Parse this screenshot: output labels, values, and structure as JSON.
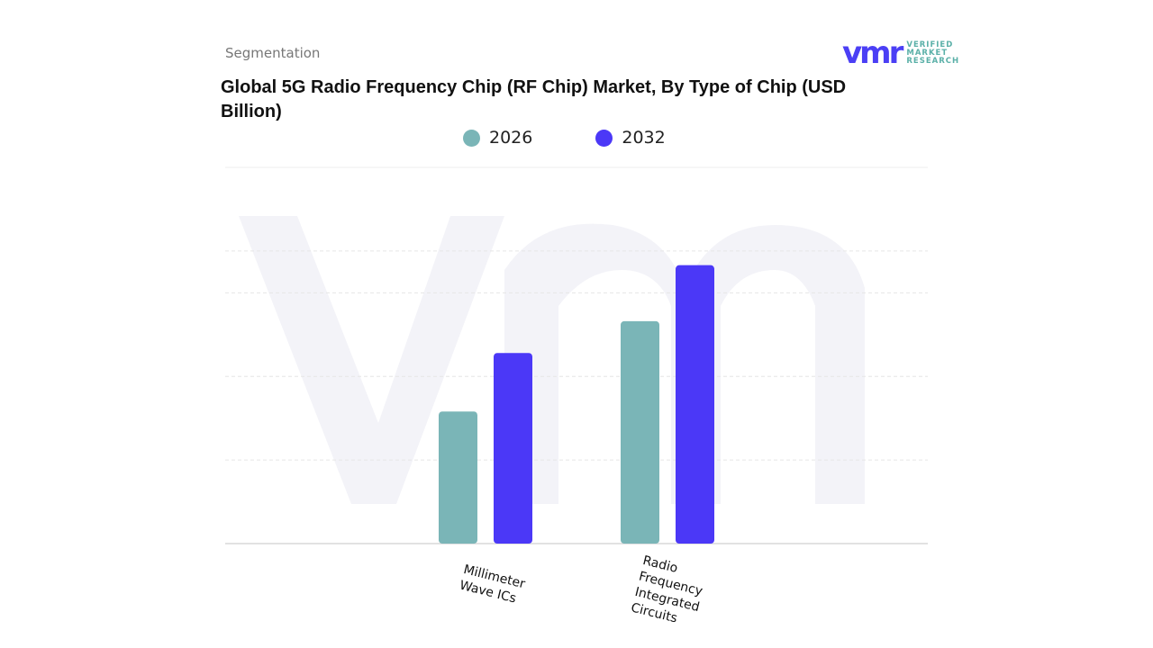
{
  "header": {
    "segment_label": "Segmentation",
    "title": "Global 5G Radio Frequency Chip (RF Chip) Market, By Type of Chip (USD Billion)"
  },
  "logo": {
    "mark": "vmr",
    "text": [
      "VERIFIED",
      "MARKET",
      "RESEARCH"
    ]
  },
  "colors": {
    "2026": "#7ab5b7",
    "2032": "#4b38f7"
  },
  "chart_data": {
    "type": "bar",
    "title": "Global 5G Radio Frequency Chip (RF Chip) Market, By Type of Chip (USD Billion)",
    "categories": [
      "Millimeter Wave ICs",
      "Radio Frequency Integrated Circuits"
    ],
    "series": [
      {
        "name": "2026",
        "values": [
          1.58,
          2.66
        ]
      },
      {
        "name": "2032",
        "values": [
          2.28,
          3.33
        ]
      }
    ],
    "ylim": [
      0,
      4.5
    ],
    "grid": true,
    "legend": "top-center",
    "xlabel": "",
    "ylabel": ""
  }
}
